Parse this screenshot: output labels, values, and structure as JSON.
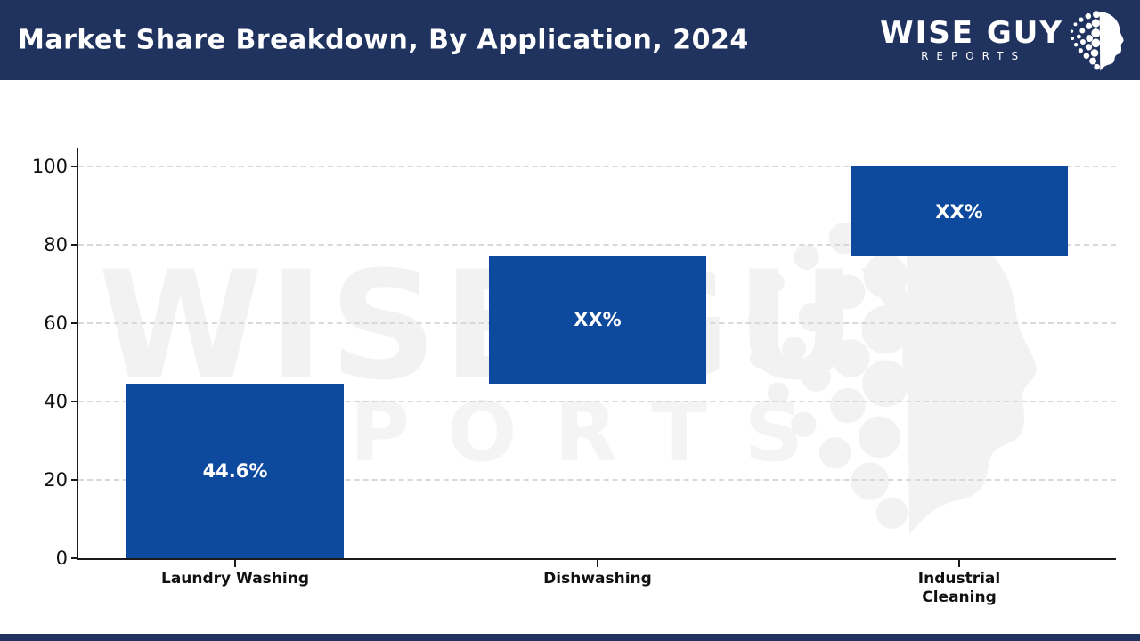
{
  "header": {
    "title": "Market Share Breakdown, By Application, 2024",
    "logo": {
      "line1": "WISE GUY",
      "line2": "REPORTS"
    }
  },
  "watermark": {
    "line1": "WISE GUY",
    "line2": "REPORTS"
  },
  "chart_data": {
    "type": "bar",
    "subtype": "floating-waterfall",
    "title": "Market Share Breakdown, By Application, 2024",
    "categories": [
      "Laundry Washing",
      "Dishwashing",
      "Industrial\nCleaning"
    ],
    "series": [
      {
        "name": "Market Share",
        "segments": [
          {
            "category": "Laundry Washing",
            "start": 0,
            "end": 44.6,
            "label": "44.6%"
          },
          {
            "category": "Dishwashing",
            "start": 44.6,
            "end": 77,
            "label": "XX%"
          },
          {
            "category": "Industrial Cleaning",
            "start": 77,
            "end": 100,
            "label": "XX%"
          }
        ]
      }
    ],
    "xlabel": "",
    "ylabel": "",
    "ylim": [
      0,
      100
    ],
    "yticks": [
      0,
      20,
      40,
      60,
      80,
      100
    ],
    "grid": "horizontal-dashed",
    "legend": "none",
    "bar_color": "#0d4a9e",
    "bar_label_color": "#ffffff",
    "header_color": "#20335f",
    "gridline_color": "#d9d9d9",
    "axis_color": "#1a1a1a"
  }
}
